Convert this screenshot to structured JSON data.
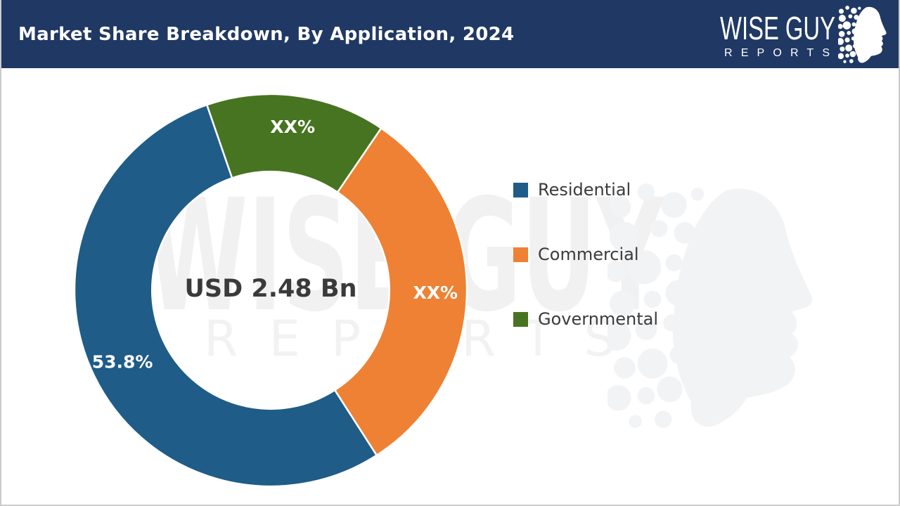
{
  "header": {
    "title": "Market Share Breakdown, By Application, 2024",
    "bg_color": "#203864",
    "logo": {
      "line1": "WISE GUY",
      "line2": "REPORTS"
    }
  },
  "watermark": {
    "line1": "WISE GUY",
    "line2": "REPORTS"
  },
  "chart_data": {
    "type": "pie",
    "subtype": "donut",
    "title": "Market Share Breakdown, By Application, 2024",
    "center_label": "USD 2.48 Bn",
    "start_angle_deg": 109,
    "direction": "clockwise",
    "inner_radius_ratio": 0.605,
    "label_radius_ratio": 0.84,
    "slices": [
      {
        "name": "Governmental",
        "value_pct": 14.8,
        "label": "XX%",
        "color": "#477420"
      },
      {
        "name": "Commercial",
        "value_pct": 31.4,
        "label": "XX%",
        "color": "#ee8134"
      },
      {
        "name": "Residential",
        "value_pct": 53.8,
        "label": "53.8%",
        "color": "#1f5c87"
      }
    ],
    "legend": [
      {
        "label": "Residential",
        "color": "#1f5c87"
      },
      {
        "label": "Commercial",
        "color": "#ee8134"
      },
      {
        "label": "Governmental",
        "color": "#477420"
      }
    ],
    "legend_position": "right"
  }
}
